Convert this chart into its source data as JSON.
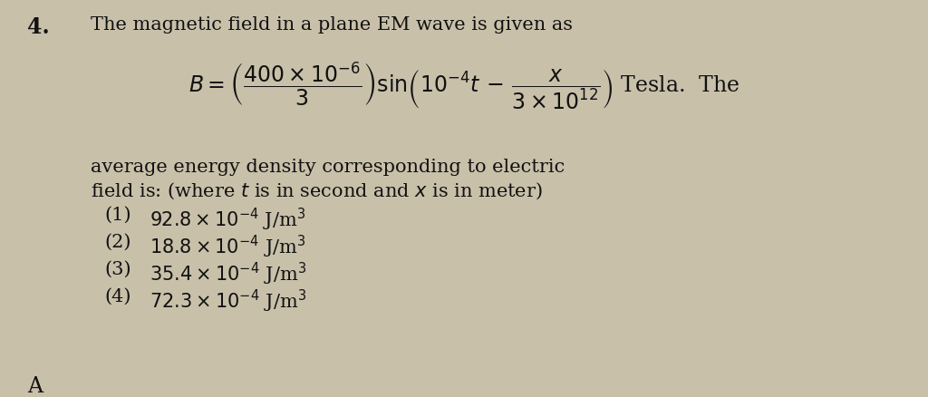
{
  "background_color": "#c9c0aa",
  "question_number": "4.",
  "line1": "The magnetic field in a plane EM wave is given as",
  "line2": "average energy density corresponding to electric",
  "line3": "field is: (where $t$ is in second and $x$ is in meter)",
  "opt1_label": "(1)",
  "opt1_val": "$92.8 \\times 10^{-4}$ J/m$^3$",
  "opt2_label": "(2)",
  "opt2_val": "$18.8 \\times 10^{-4}$ J/m$^3$",
  "opt3_label": "(3)",
  "opt3_val": "$35.4 \\times 10^{-4}$ J/m$^3$",
  "opt4_label": "(4)",
  "opt4_val": "$72.3 \\times 10^{-4}$ J/m$^3$",
  "footer": "A",
  "text_color": "#111111",
  "fontsize_number": 17,
  "fontsize_main": 15,
  "fontsize_formula": 17,
  "fontsize_options": 15
}
